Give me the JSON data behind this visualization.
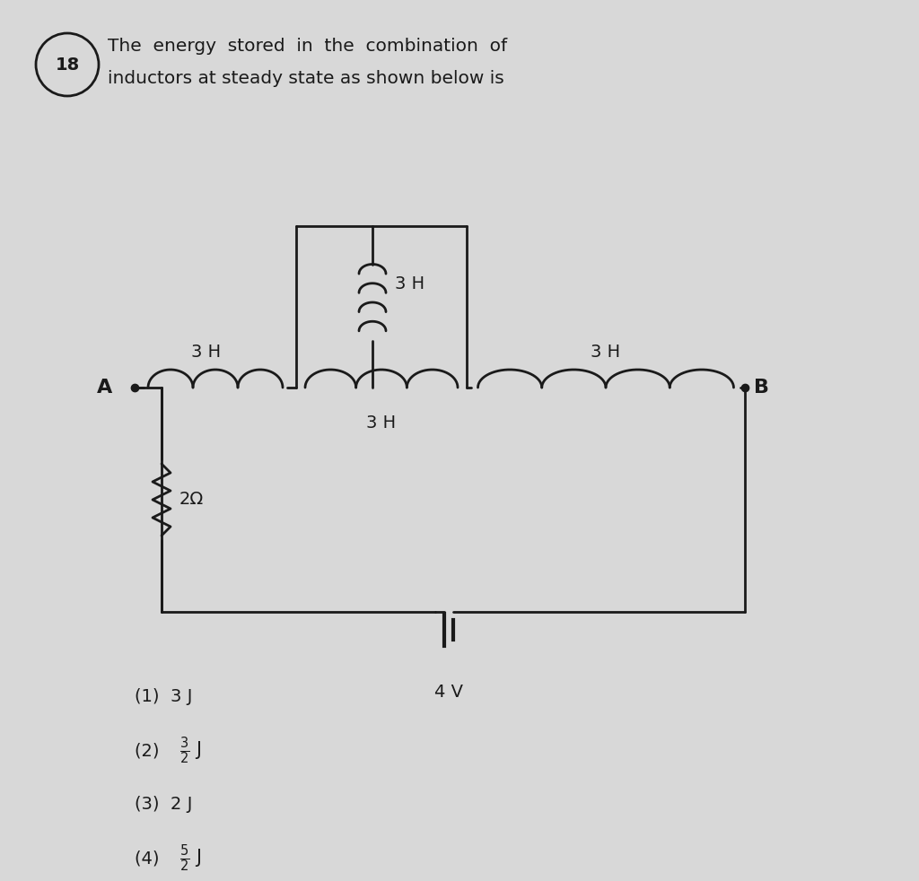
{
  "bg_color": "#d8d8d8",
  "line_color": "#1a1a1a",
  "title_question_num": "18.",
  "title_text_line1": "The  energy  stored  in  the  combination  of",
  "title_text_line2": "inductors at steady state as shown below is",
  "label_A": "A",
  "label_B": "B",
  "label_2ohm": "2Ω",
  "label_4V": "4 V",
  "label_3H_series1": "3 H",
  "label_3H_series2": "3 H",
  "label_3H_parallel": "3 H",
  "label_3H_right_series": "3 H",
  "label_3H_bottom": "3 H",
  "options": [
    "(1)  3 J",
    "(2)  $\\frac{3}{2}$ J",
    "(3)  2 J",
    "(4)  $\\frac{5}{2}$ J"
  ]
}
